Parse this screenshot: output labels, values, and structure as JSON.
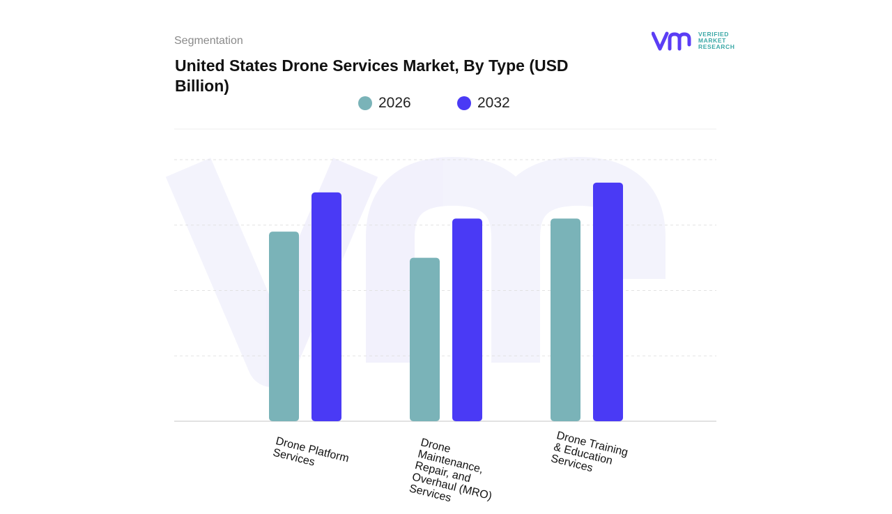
{
  "header": {
    "section": "Segmentation",
    "title": "United States Drone Services Market, By Type (USD Billion)"
  },
  "logo": {
    "mark": "vmr",
    "lines": [
      "VERIFIED",
      "MARKET",
      "RESEARCH"
    ],
    "colors": {
      "mark": "#5b3df5",
      "text": "#3aa8a6"
    }
  },
  "chart_data": {
    "type": "bar",
    "title": "United States Drone Services Market, By Type (USD Billion)",
    "xlabel": "",
    "ylabel": "",
    "categories": [
      "Drone Platform Services",
      "Drone Maintenance, Repair, and Overhaul (MRO) Services",
      "Drone Training & Education Services"
    ],
    "series": [
      {
        "name": "2026",
        "color": "#7ab3b8",
        "values": [
          2.9,
          2.5,
          3.1
        ]
      },
      {
        "name": "2032",
        "color": "#4a3af5",
        "values": [
          3.5,
          3.1,
          3.65
        ]
      }
    ],
    "ylim": [
      0,
      4
    ],
    "grid": true,
    "legend_position": "top-center"
  }
}
